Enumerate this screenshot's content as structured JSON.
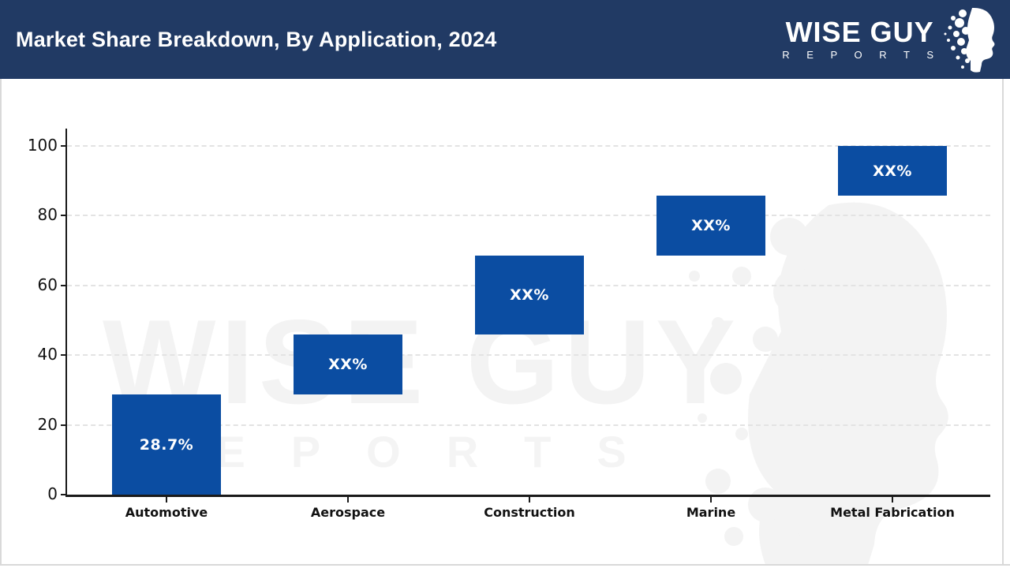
{
  "header": {
    "title": "Market Share Breakdown, By Application, 2024",
    "bg_color": "#213a64",
    "logo": {
      "line1": "WISE GUY",
      "line2": "R E P O R T S"
    }
  },
  "watermark": {
    "line1": "WISE GUY",
    "line2": "REPORTS"
  },
  "chart_data": {
    "type": "bar",
    "subtype": "waterfall",
    "title": "Market Share Breakdown, By Application, 2024",
    "xlabel": "",
    "ylabel": "",
    "categories": [
      "Automotive",
      "Aerospace",
      "Construction",
      "Marine",
      "Metal Fabrication"
    ],
    "segments": [
      {
        "category": "Automotive",
        "start": 0,
        "end": 28.7,
        "label": "28.7%"
      },
      {
        "category": "Aerospace",
        "start": 28.7,
        "end": 45.9,
        "label": "XX%"
      },
      {
        "category": "Construction",
        "start": 45.9,
        "end": 68.6,
        "label": "XX%"
      },
      {
        "category": "Marine",
        "start": 68.6,
        "end": 85.7,
        "label": "XX%"
      },
      {
        "category": "Metal Fabrication",
        "start": 85.7,
        "end": 100,
        "label": "XX%"
      }
    ],
    "yticks": [
      0,
      20,
      40,
      60,
      80,
      100
    ],
    "ylim": [
      0,
      105
    ],
    "grid": true,
    "grid_style": "dashed",
    "legend": "none",
    "bar_color": "#0b4da2",
    "label_color": "#ffffff"
  }
}
